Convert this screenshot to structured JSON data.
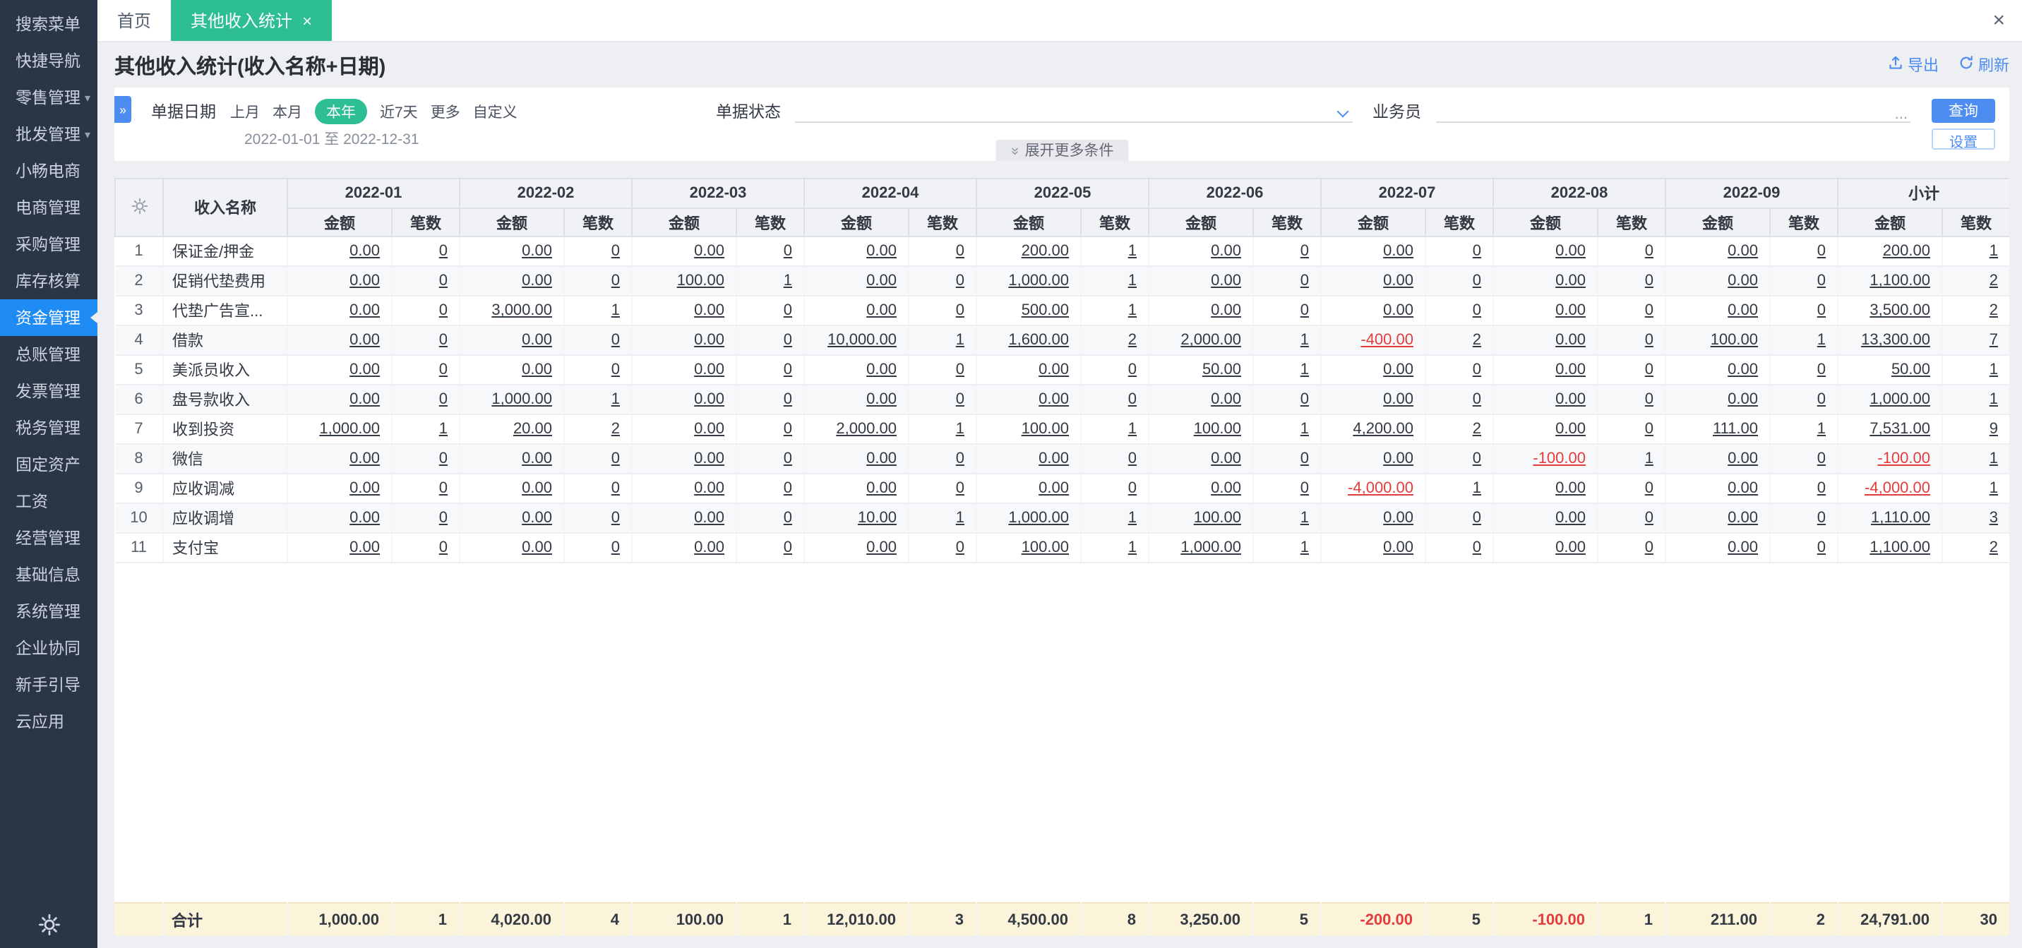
{
  "window": {
    "close_icon": "×"
  },
  "icons": {
    "collapse": "»",
    "double_chevron": "»",
    "caret_down": "▾"
  },
  "sidebar": {
    "items": [
      {
        "label": "搜索菜单"
      },
      {
        "label": "快捷导航"
      },
      {
        "label": "零售管理",
        "caret": true
      },
      {
        "label": "批发管理",
        "caret": true
      },
      {
        "label": "小畅电商"
      },
      {
        "label": "电商管理"
      },
      {
        "label": "采购管理"
      },
      {
        "label": "库存核算"
      },
      {
        "label": "资金管理",
        "active": true
      },
      {
        "label": "总账管理"
      },
      {
        "label": "发票管理"
      },
      {
        "label": "税务管理"
      },
      {
        "label": "固定资产"
      },
      {
        "label": "工资"
      },
      {
        "label": "经营管理"
      },
      {
        "label": "基础信息"
      },
      {
        "label": "系统管理"
      },
      {
        "label": "企业协同"
      },
      {
        "label": "新手引导"
      },
      {
        "label": "云应用"
      }
    ],
    "colors": {
      "bg": "#2a3547",
      "active": "#1f8bf4"
    }
  },
  "tabs": [
    {
      "label": "首页",
      "active": false,
      "closable": false
    },
    {
      "label": "其他收入统计",
      "active": true,
      "closable": true
    }
  ],
  "page": {
    "title": "其他收入统计(收入名称+日期)",
    "export_label": "导出",
    "refresh_label": "刷新"
  },
  "filters": {
    "date_label": "单据日期",
    "quick_options": [
      "上月",
      "本月",
      "本年",
      "近7天",
      "更多",
      "自定义"
    ],
    "selected_quick": "本年",
    "date_range": "2022-01-01 至 2022-12-31",
    "status_label": "单据状态",
    "salesman_label": "业务员",
    "more_dots": "...",
    "search_label": "查询",
    "settings_label": "设置",
    "expand_label": "展开更多条件",
    "accent_color": "#4d8df2",
    "selected_pill_color": "#2dbe93"
  },
  "table": {
    "name_header": "收入名称",
    "amount_header": "金额",
    "count_header": "笔数",
    "groups": [
      "2022-01",
      "2022-02",
      "2022-03",
      "2022-04",
      "2022-05",
      "2022-06",
      "2022-07",
      "2022-08",
      "2022-09",
      "小计"
    ],
    "rows": [
      {
        "no": "1",
        "name": "保证金/押金",
        "cells": [
          [
            "0.00",
            "0"
          ],
          [
            "0.00",
            "0"
          ],
          [
            "0.00",
            "0"
          ],
          [
            "0.00",
            "0"
          ],
          [
            "200.00",
            "1"
          ],
          [
            "0.00",
            "0"
          ],
          [
            "0.00",
            "0"
          ],
          [
            "0.00",
            "0"
          ],
          [
            "0.00",
            "0"
          ],
          [
            "200.00",
            "1"
          ]
        ]
      },
      {
        "no": "2",
        "name": "促销代垫费用",
        "cells": [
          [
            "0.00",
            "0"
          ],
          [
            "0.00",
            "0"
          ],
          [
            "100.00",
            "1"
          ],
          [
            "0.00",
            "0"
          ],
          [
            "1,000.00",
            "1"
          ],
          [
            "0.00",
            "0"
          ],
          [
            "0.00",
            "0"
          ],
          [
            "0.00",
            "0"
          ],
          [
            "0.00",
            "0"
          ],
          [
            "1,100.00",
            "2"
          ]
        ]
      },
      {
        "no": "3",
        "name": "代垫广告宣...",
        "cells": [
          [
            "0.00",
            "0"
          ],
          [
            "3,000.00",
            "1"
          ],
          [
            "0.00",
            "0"
          ],
          [
            "0.00",
            "0"
          ],
          [
            "500.00",
            "1"
          ],
          [
            "0.00",
            "0"
          ],
          [
            "0.00",
            "0"
          ],
          [
            "0.00",
            "0"
          ],
          [
            "0.00",
            "0"
          ],
          [
            "3,500.00",
            "2"
          ]
        ]
      },
      {
        "no": "4",
        "name": "借款",
        "cells": [
          [
            "0.00",
            "0"
          ],
          [
            "0.00",
            "0"
          ],
          [
            "0.00",
            "0"
          ],
          [
            "10,000.00",
            "1"
          ],
          [
            "1,600.00",
            "2"
          ],
          [
            "2,000.00",
            "1"
          ],
          [
            "-400.00",
            "2"
          ],
          [
            "0.00",
            "0"
          ],
          [
            "100.00",
            "1"
          ],
          [
            "13,300.00",
            "7"
          ]
        ]
      },
      {
        "no": "5",
        "name": "美派员收入",
        "cells": [
          [
            "0.00",
            "0"
          ],
          [
            "0.00",
            "0"
          ],
          [
            "0.00",
            "0"
          ],
          [
            "0.00",
            "0"
          ],
          [
            "0.00",
            "0"
          ],
          [
            "50.00",
            "1"
          ],
          [
            "0.00",
            "0"
          ],
          [
            "0.00",
            "0"
          ],
          [
            "0.00",
            "0"
          ],
          [
            "50.00",
            "1"
          ]
        ]
      },
      {
        "no": "6",
        "name": "盘号款收入",
        "cells": [
          [
            "0.00",
            "0"
          ],
          [
            "1,000.00",
            "1"
          ],
          [
            "0.00",
            "0"
          ],
          [
            "0.00",
            "0"
          ],
          [
            "0.00",
            "0"
          ],
          [
            "0.00",
            "0"
          ],
          [
            "0.00",
            "0"
          ],
          [
            "0.00",
            "0"
          ],
          [
            "0.00",
            "0"
          ],
          [
            "1,000.00",
            "1"
          ]
        ]
      },
      {
        "no": "7",
        "name": "收到投资",
        "cells": [
          [
            "1,000.00",
            "1"
          ],
          [
            "20.00",
            "2"
          ],
          [
            "0.00",
            "0"
          ],
          [
            "2,000.00",
            "1"
          ],
          [
            "100.00",
            "1"
          ],
          [
            "100.00",
            "1"
          ],
          [
            "4,200.00",
            "2"
          ],
          [
            "0.00",
            "0"
          ],
          [
            "111.00",
            "1"
          ],
          [
            "7,531.00",
            "9"
          ]
        ]
      },
      {
        "no": "8",
        "name": "微信",
        "cells": [
          [
            "0.00",
            "0"
          ],
          [
            "0.00",
            "0"
          ],
          [
            "0.00",
            "0"
          ],
          [
            "0.00",
            "0"
          ],
          [
            "0.00",
            "0"
          ],
          [
            "0.00",
            "0"
          ],
          [
            "0.00",
            "0"
          ],
          [
            "-100.00",
            "1"
          ],
          [
            "0.00",
            "0"
          ],
          [
            "-100.00",
            "1"
          ]
        ]
      },
      {
        "no": "9",
        "name": "应收调减",
        "cells": [
          [
            "0.00",
            "0"
          ],
          [
            "0.00",
            "0"
          ],
          [
            "0.00",
            "0"
          ],
          [
            "0.00",
            "0"
          ],
          [
            "0.00",
            "0"
          ],
          [
            "0.00",
            "0"
          ],
          [
            "-4,000.00",
            "1"
          ],
          [
            "0.00",
            "0"
          ],
          [
            "0.00",
            "0"
          ],
          [
            "-4,000.00",
            "1"
          ]
        ]
      },
      {
        "no": "10",
        "name": "应收调增",
        "cells": [
          [
            "0.00",
            "0"
          ],
          [
            "0.00",
            "0"
          ],
          [
            "0.00",
            "0"
          ],
          [
            "10.00",
            "1"
          ],
          [
            "1,000.00",
            "1"
          ],
          [
            "100.00",
            "1"
          ],
          [
            "0.00",
            "0"
          ],
          [
            "0.00",
            "0"
          ],
          [
            "0.00",
            "0"
          ],
          [
            "1,110.00",
            "3"
          ]
        ]
      },
      {
        "no": "11",
        "name": "支付宝",
        "cells": [
          [
            "0.00",
            "0"
          ],
          [
            "0.00",
            "0"
          ],
          [
            "0.00",
            "0"
          ],
          [
            "0.00",
            "0"
          ],
          [
            "100.00",
            "1"
          ],
          [
            "1,000.00",
            "1"
          ],
          [
            "0.00",
            "0"
          ],
          [
            "0.00",
            "0"
          ],
          [
            "0.00",
            "0"
          ],
          [
            "1,100.00",
            "2"
          ]
        ]
      }
    ],
    "total_label": "合计",
    "totals": [
      [
        "1,000.00",
        "1"
      ],
      [
        "4,020.00",
        "4"
      ],
      [
        "100.00",
        "1"
      ],
      [
        "12,010.00",
        "3"
      ],
      [
        "4,500.00",
        "8"
      ],
      [
        "3,250.00",
        "5"
      ],
      [
        "-200.00",
        "5"
      ],
      [
        "-100.00",
        "1"
      ],
      [
        "211.00",
        "2"
      ],
      [
        "24,791.00",
        "30"
      ]
    ],
    "negative_color": "#e23c3c",
    "total_row_bg": "#fcf4da"
  }
}
